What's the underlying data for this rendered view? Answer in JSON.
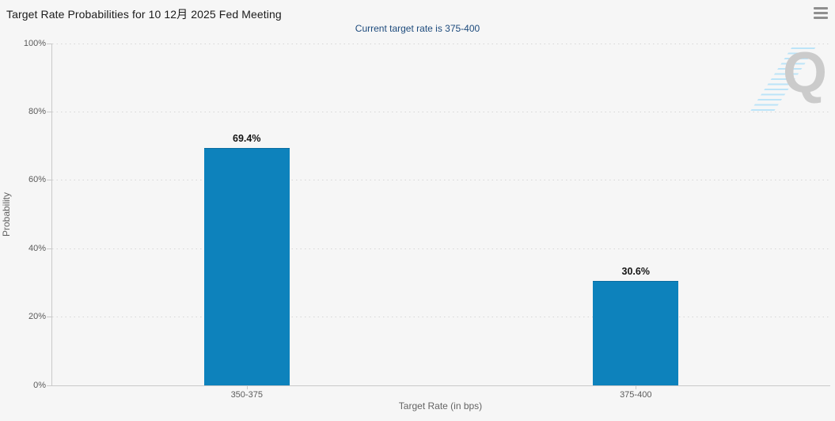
{
  "header": {
    "title": "Target Rate Probabilities for 10 12月 2025 Fed Meeting",
    "subtitle": "Current target rate is 375-400"
  },
  "icons": {
    "menu": "hamburger-icon",
    "watermark": "quikstrike-q-logo"
  },
  "watermark": {
    "letter": "Q"
  },
  "chart_data": {
    "type": "bar",
    "title": "Target Rate Probabilities for 10 12月 2025 Fed Meeting",
    "subtitle": "Current target rate is 375-400",
    "categories": [
      "350-375",
      "375-400"
    ],
    "values": [
      69.4,
      30.6
    ],
    "value_labels": [
      "69.4%",
      "30.6%"
    ],
    "xlabel": "Target Rate (in bps)",
    "ylabel": "Probability",
    "ylim": [
      0,
      100
    ],
    "ytick_labels": [
      "100%",
      "80%",
      "60%",
      "40%",
      "20%",
      "0%"
    ],
    "ytick_values": [
      100,
      80,
      60,
      40,
      20,
      0
    ],
    "grid": "dotted-horizontal",
    "legend": "none",
    "colors": {
      "bar": "#0d82bc",
      "bar_edge": "#0a6da1",
      "background": "#f6f6f6",
      "title_text": "#1b1b1b",
      "subtitle_text": "#1c4a7c",
      "grid_line": "#d6d6d6",
      "axis_line": "#c9c9c9",
      "tick_text": "#5b5b5b",
      "axis_title_text": "#646464",
      "value_label_text": "#141414",
      "watermark_gray": "#cbcbcb",
      "watermark_blue": "#b9e3f8",
      "menu_icon": "#8f8f8f"
    }
  }
}
